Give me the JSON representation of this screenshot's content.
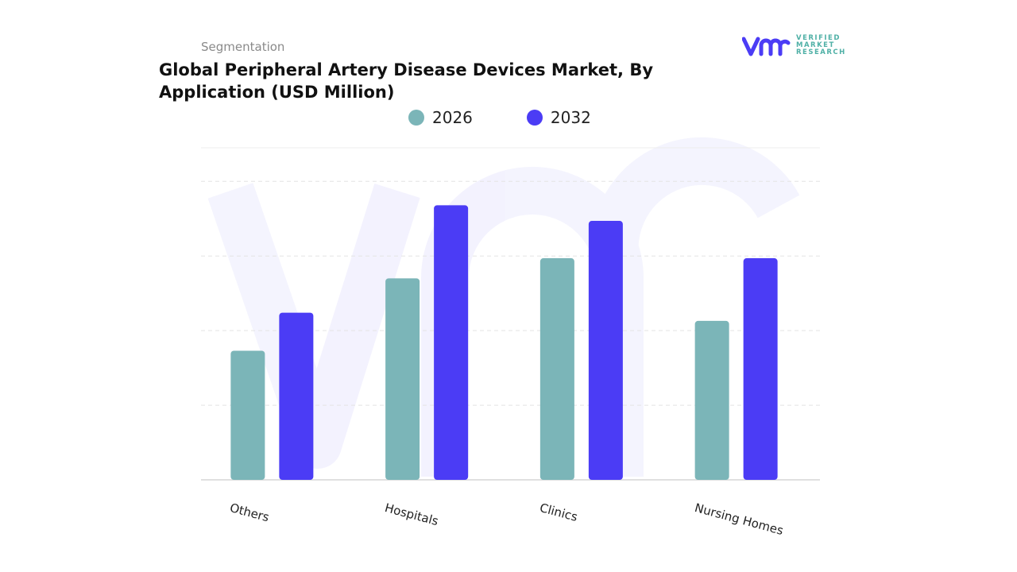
{
  "header": {
    "segment_label": "Segmentation",
    "title": "Global Peripheral Artery Disease Devices Market, By Application (USD Million)"
  },
  "logo": {
    "text_lines": [
      "VERIFIED",
      "MARKET",
      "RESEARCH"
    ],
    "brand_color": "#4b3cf5"
  },
  "chart_data": {
    "type": "bar",
    "title": "Global Peripheral Artery Disease Devices Market, By Application (USD Million)",
    "categories": [
      "Others",
      "Hospitals",
      "Clinics",
      "Nursing Homes"
    ],
    "series": [
      {
        "name": "2026",
        "color": "#7bb5b8",
        "values": [
          1.73,
          2.7,
          2.97,
          2.13
        ]
      },
      {
        "name": "2032",
        "color": "#4b3cf5",
        "values": [
          2.24,
          3.68,
          3.47,
          2.97
        ]
      }
    ],
    "xlabel": "",
    "ylabel": "",
    "unit": "USD Million",
    "ylim": [
      0,
      4.45
    ],
    "grid": true,
    "legend_position": "top-center",
    "y_tick_labels_shown": false
  }
}
